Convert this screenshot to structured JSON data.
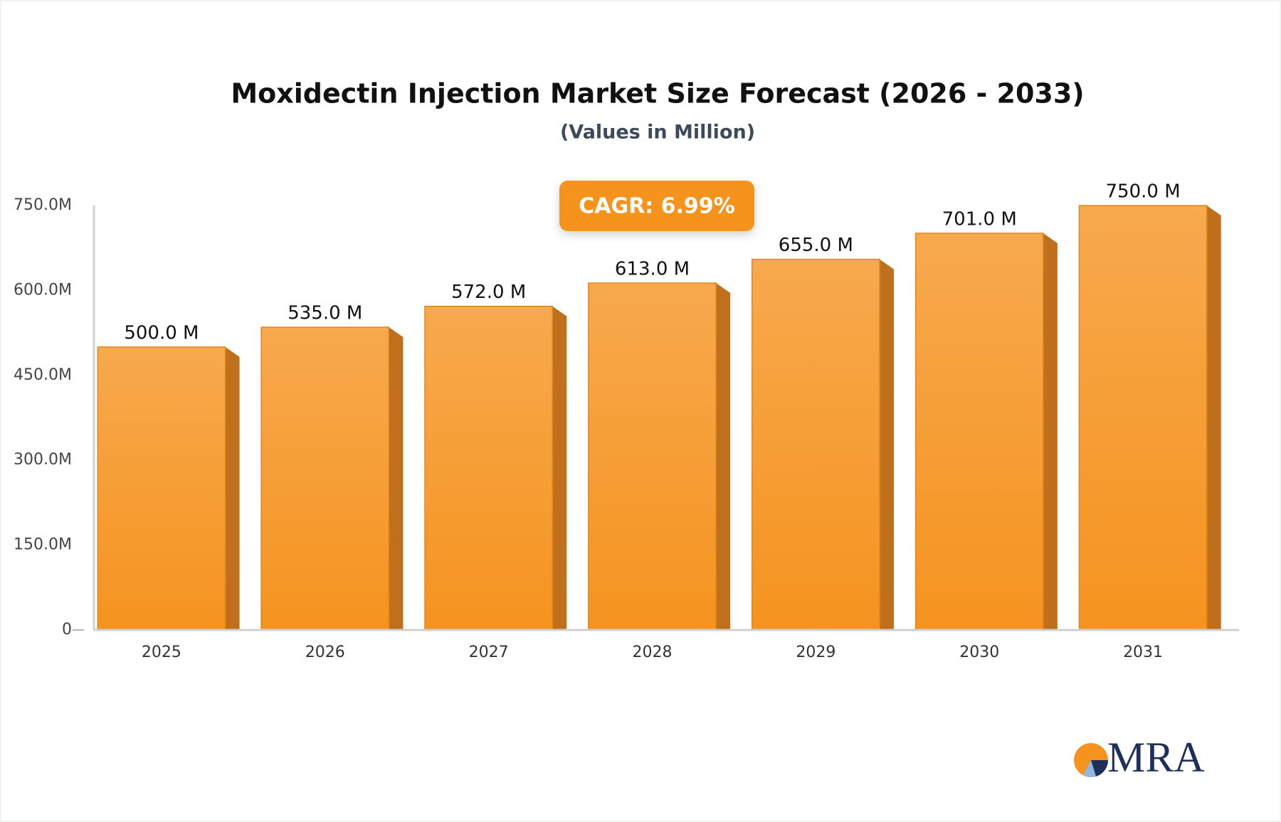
{
  "chart_data": {
    "type": "bar3d",
    "title": "Moxidectin Injection Market Size Forecast (2026 - 2033)",
    "subtitle": "(Values in Million)",
    "annotation": "CAGR: 6.99%",
    "categories": [
      "2025",
      "2026",
      "2027",
      "2028",
      "2029",
      "2030",
      "2031"
    ],
    "values": [
      500,
      535,
      572,
      613,
      655,
      701,
      750
    ],
    "value_labels": [
      "500.0 M",
      "535.0 M",
      "572.0 M",
      "613.0 M",
      "655.0 M",
      "701.0 M",
      "750.0 M"
    ],
    "color": "#f6982c",
    "ylim": [
      0,
      750
    ],
    "yticks": [
      0,
      {
        "value": 150,
        "label": "150.0M"
      },
      {
        "value": 300,
        "label": "300.0M"
      },
      {
        "value": 450,
        "label": "450.0M"
      },
      {
        "value": 600,
        "label": "600.0M"
      },
      {
        "value": 750,
        "label": "750.0M"
      }
    ],
    "logo": "MRA"
  }
}
